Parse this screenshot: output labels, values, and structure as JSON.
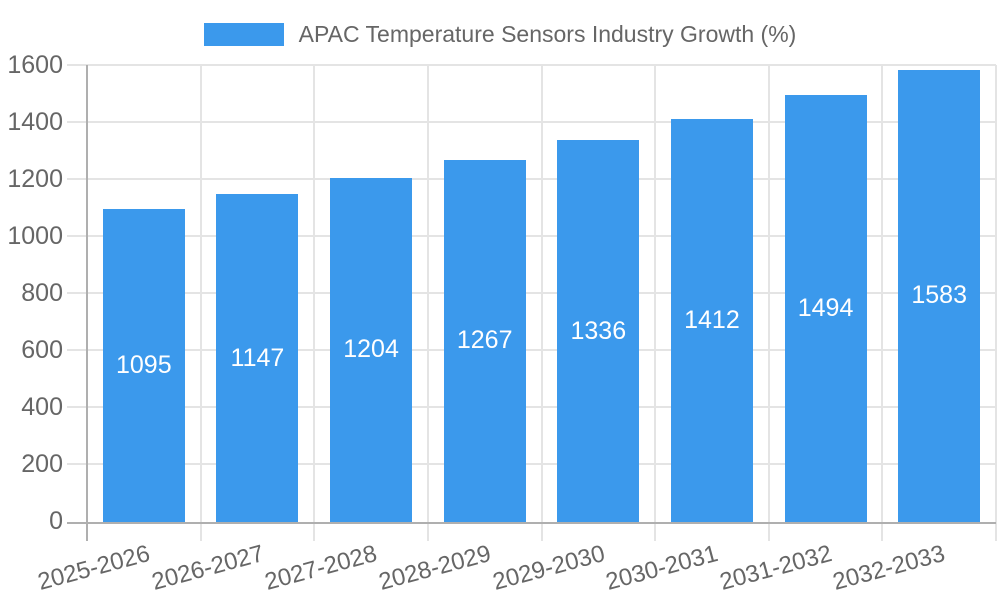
{
  "chart_data": {
    "type": "bar",
    "legend": {
      "position": "top",
      "label": "APAC Temperature Sensors Industry Growth (%)"
    },
    "categories": [
      "2025-2026",
      "2026-2027",
      "2027-2028",
      "2028-2029",
      "2029-2030",
      "2030-2031",
      "2031-2032",
      "2032-2033"
    ],
    "series": [
      {
        "name": "APAC Temperature Sensors Industry Growth (%)",
        "values": [
          1095,
          1147,
          1204,
          1267,
          1336,
          1412,
          1494,
          1583
        ],
        "color": "#3B99EC"
      }
    ],
    "ylim": [
      0,
      1600
    ],
    "yticks": [
      0,
      200,
      400,
      600,
      800,
      1000,
      1200,
      1400,
      1600
    ],
    "grid": true,
    "value_labels": {
      "show": true,
      "position": "center",
      "color": "#FFFFFF"
    },
    "x_tick_rotation_deg": -15
  },
  "colors": {
    "bar": "#3B99EC",
    "grid_line": "#E4E4E4",
    "axis_line": "#AFAFAF",
    "tick_text": "#666666",
    "legend_text": "#666666",
    "bar_value_text": "#FFFFFF",
    "background": "#FFFFFF"
  }
}
